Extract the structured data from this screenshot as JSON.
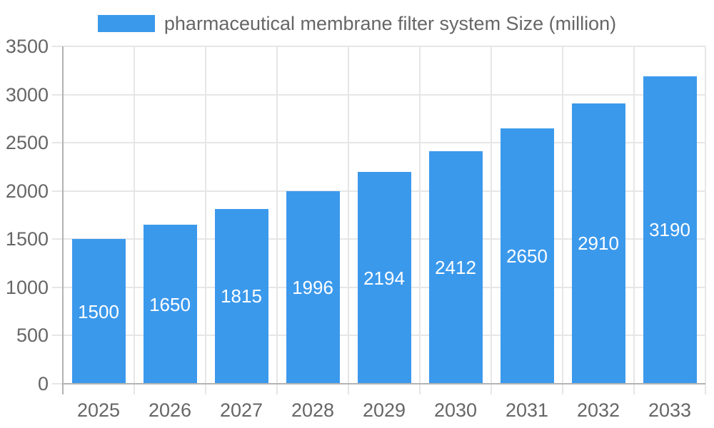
{
  "chart_data": {
    "type": "bar",
    "title": "pharmaceutical membrane filter system Size (million)",
    "legend": {
      "position": "top",
      "entries": [
        {
          "label": "pharmaceutical membrane filter system Size (million)",
          "color": "#3b99ec"
        }
      ]
    },
    "categories": [
      "2025",
      "2026",
      "2027",
      "2028",
      "2029",
      "2030",
      "2031",
      "2032",
      "2033"
    ],
    "series": [
      {
        "name": "pharmaceutical membrane filter system Size (million)",
        "values": [
          1500,
          1650,
          1815,
          1996,
          2194,
          2412,
          2650,
          2910,
          3190
        ]
      }
    ],
    "bar_value_labels": [
      1500,
      1650,
      1815,
      1996,
      2194,
      2412,
      2650,
      2910,
      3190
    ],
    "xlabel": "",
    "ylabel": "",
    "ylim": [
      0,
      3500
    ],
    "yticks": [
      0,
      500,
      1000,
      1500,
      2000,
      2500,
      3000,
      3500
    ],
    "grid": true,
    "value_label_position": "inside-center"
  },
  "colors": {
    "bar": "#3b99ec",
    "axis_text": "#666666",
    "grid_line": "#e6e6e6",
    "axis_line": "#b3b3b3",
    "bar_label_text": "#ffffff",
    "background": "#ffffff"
  }
}
